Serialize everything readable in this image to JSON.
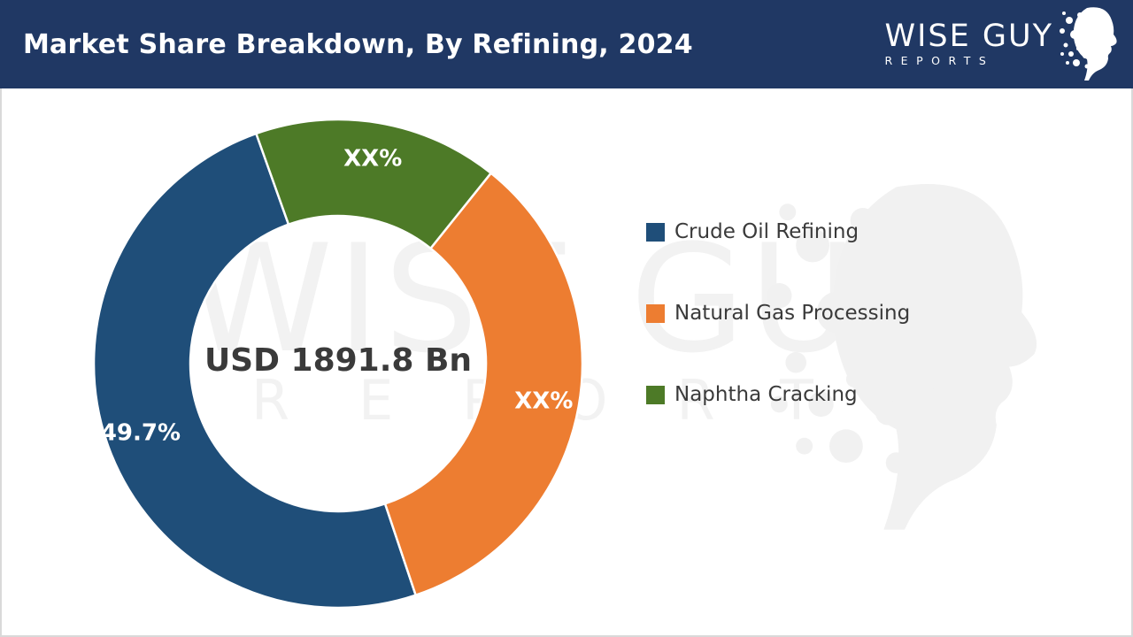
{
  "header": {
    "title": "Market Share Breakdown, By Refining, 2024",
    "logo": {
      "wordmark": "WISE GUY",
      "subtitle": "REPORTS"
    }
  },
  "watermark": {
    "wordmark": "WISE GUY",
    "subtitle": "REPORTS"
  },
  "legend": [
    {
      "label": "Crude Oil Refining",
      "color": "#1F4E79"
    },
    {
      "label": "Natural Gas Processing",
      "color": "#ED7D31"
    },
    {
      "label": "Naphtha Cracking",
      "color": "#4D7A27"
    }
  ],
  "chart_data": {
    "type": "pie",
    "subtype": "donut",
    "title": "Market Share Breakdown, By Refining, 2024",
    "center_text": "USD 1891.8 Bn",
    "slices": [
      {
        "label": "Crude Oil Refining",
        "pct": 49.7,
        "display": "49.7%",
        "color": "#1F4E79"
      },
      {
        "label": "Natural Gas Processing",
        "pct": 34.1,
        "display": "XX%",
        "color": "#ED7D31"
      },
      {
        "label": "Naphtha Cracking",
        "pct": 16.2,
        "display": "XX%",
        "color": "#4D7A27"
      }
    ],
    "start_angle_deg": 109.6,
    "direction": "counterclockwise",
    "inner_radius_ratio": 0.605,
    "slice_label_color": "#ffffff",
    "legend_position": "right"
  },
  "colors": {
    "header_bg": "#203864",
    "text_dark": "#3A3A3A",
    "watermark": "#F2F2F2",
    "border": "#D9D9D9"
  }
}
